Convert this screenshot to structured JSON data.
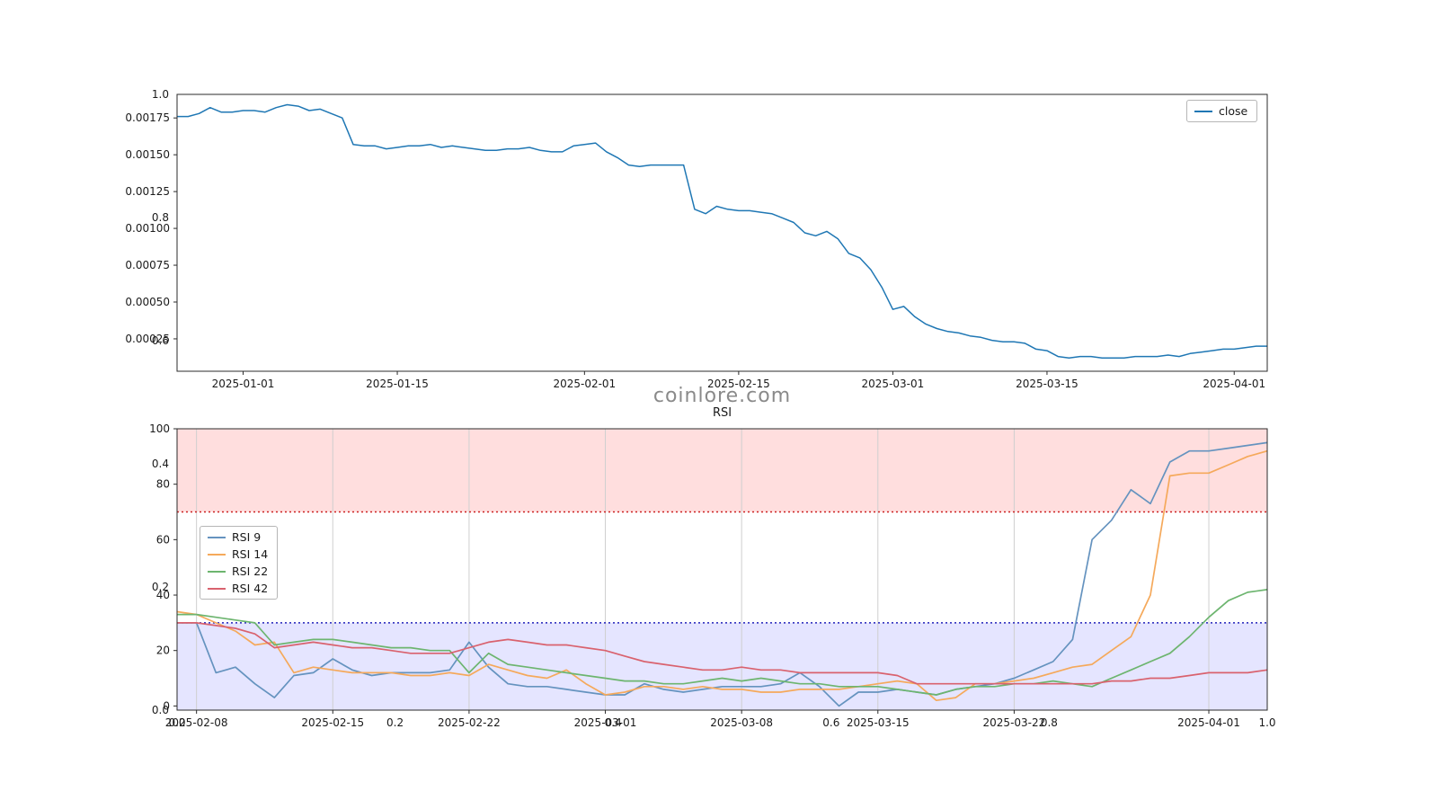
{
  "watermark": "coinlore.com",
  "ghost_axis": {
    "ytick_labels": [
      "1.0",
      "0.8",
      "0.6",
      "0.4",
      "0.2",
      "0.0"
    ],
    "xtick_labels": [
      "0.0",
      "0.2",
      "0.4",
      "0.6",
      "0.8",
      "1.0"
    ]
  },
  "chart_data": [
    {
      "type": "line",
      "title": "",
      "xlabel": "",
      "ylabel": "",
      "xlim": [
        "2024-12-26",
        "2025-04-04"
      ],
      "ylim": [
        3e-05,
        0.00191
      ],
      "grid": false,
      "legend_position": "upper right",
      "yticks": [
        0.00025,
        0.0005,
        0.00075,
        0.001,
        0.00125,
        0.0015,
        0.00175
      ],
      "ytick_labels": [
        "0.00025",
        "0.00050",
        "0.00075",
        "0.00100",
        "0.00125",
        "0.00150",
        "0.00175"
      ],
      "xticks": [
        "2025-01-01",
        "2025-01-15",
        "2025-02-01",
        "2025-02-15",
        "2025-03-01",
        "2025-03-15",
        "2025-04-01"
      ],
      "series": [
        {
          "name": "close",
          "color": "#1f77b4",
          "start_date": "2024-12-26",
          "values": [
            0.00176,
            0.00176,
            0.00178,
            0.00182,
            0.00179,
            0.00179,
            0.0018,
            0.0018,
            0.00179,
            0.00182,
            0.00184,
            0.00183,
            0.0018,
            0.00181,
            0.00178,
            0.00175,
            0.00157,
            0.00156,
            0.00156,
            0.00154,
            0.00155,
            0.00156,
            0.00156,
            0.00157,
            0.00155,
            0.00156,
            0.00155,
            0.00154,
            0.00153,
            0.00153,
            0.00154,
            0.00154,
            0.00155,
            0.00153,
            0.00152,
            0.00152,
            0.00156,
            0.00157,
            0.00158,
            0.00152,
            0.00148,
            0.00143,
            0.00142,
            0.00143,
            0.00143,
            0.00143,
            0.00143,
            0.00113,
            0.0011,
            0.00115,
            0.00113,
            0.00112,
            0.00112,
            0.00111,
            0.0011,
            0.00107,
            0.00104,
            0.00097,
            0.00095,
            0.00098,
            0.00093,
            0.00083,
            0.0008,
            0.00072,
            0.0006,
            0.00045,
            0.00047,
            0.0004,
            0.00035,
            0.00032,
            0.0003,
            0.00029,
            0.00027,
            0.00026,
            0.00024,
            0.00023,
            0.00023,
            0.00022,
            0.00018,
            0.00017,
            0.00013,
            0.00012,
            0.00013,
            0.00013,
            0.00012,
            0.00012,
            0.00012,
            0.00013,
            0.00013,
            0.00013,
            0.00014,
            0.00013,
            0.00015,
            0.00016,
            0.00017,
            0.00018,
            0.00018,
            0.00019,
            0.0002,
            0.0002
          ]
        }
      ]
    },
    {
      "type": "line",
      "title": "RSI",
      "xlabel": "",
      "ylabel": "",
      "xlim": [
        "2025-02-07",
        "2025-04-04"
      ],
      "ylim": [
        -1.5,
        100
      ],
      "grid": true,
      "legend_position": "center left",
      "yticks": [
        0,
        20,
        40,
        60,
        80,
        100
      ],
      "ytick_labels": [
        "0",
        "20",
        "40",
        "60",
        "80",
        "100"
      ],
      "xticks": [
        "2025-02-08",
        "2025-02-15",
        "2025-02-22",
        "2025-03-01",
        "2025-03-08",
        "2025-03-15",
        "2025-03-22",
        "2025-04-01"
      ],
      "bands": [
        {
          "from": 70,
          "to": 100,
          "color": "rgba(255,0,0,0.13)",
          "label": "overbought-zone"
        },
        {
          "from": -1.5,
          "to": 30,
          "color": "rgba(40,40,255,0.12)",
          "label": "oversold-zone"
        }
      ],
      "hlines": [
        {
          "y": 70,
          "color": "#cc2222",
          "dash": "2 3"
        },
        {
          "y": 30,
          "color": "#2222bb",
          "dash": "2 3"
        }
      ],
      "series": [
        {
          "name": "RSI 9",
          "color": "#6593bf",
          "start_date": "2025-02-07",
          "values": [
            30,
            30,
            12,
            14,
            8,
            3,
            11,
            12,
            17,
            13,
            11,
            12,
            12,
            12,
            13,
            23,
            14,
            8,
            7,
            7,
            6,
            5,
            4,
            4,
            8,
            6,
            5,
            6,
            7,
            7,
            7,
            8,
            12,
            7,
            0,
            5,
            5,
            6,
            5,
            4,
            6,
            7,
            8,
            10,
            13,
            16,
            24,
            60,
            67,
            78,
            73,
            88,
            92,
            92,
            93,
            94,
            95
          ]
        },
        {
          "name": "RSI 14",
          "color": "#f5a95b",
          "start_date": "2025-02-07",
          "values": [
            34,
            33,
            30,
            27,
            22,
            23,
            12,
            14,
            13,
            12,
            12,
            12,
            11,
            11,
            12,
            11,
            15,
            13,
            11,
            10,
            13,
            8,
            4,
            5,
            7,
            7,
            6,
            7,
            6,
            6,
            5,
            5,
            6,
            6,
            6,
            7,
            8,
            9,
            8,
            2,
            3,
            8,
            8,
            9,
            10,
            12,
            14,
            15,
            20,
            25,
            40,
            83,
            84,
            84,
            87,
            90,
            92
          ]
        },
        {
          "name": "RSI 22",
          "color": "#6db56f",
          "start_date": "2025-02-07",
          "values": [
            33,
            33,
            32,
            31,
            30,
            22,
            23,
            24,
            24,
            23,
            22,
            21,
            21,
            20,
            20,
            12,
            19,
            15,
            14,
            13,
            12,
            11,
            10,
            9,
            9,
            8,
            8,
            9,
            10,
            9,
            10,
            9,
            8,
            8,
            7,
            7,
            7,
            6,
            5,
            4,
            6,
            7,
            7,
            8,
            8,
            9,
            8,
            7,
            10,
            13,
            16,
            19,
            25,
            32,
            38,
            41,
            42
          ]
        },
        {
          "name": "RSI 42",
          "color": "#d9626e",
          "start_date": "2025-02-07",
          "values": [
            30,
            30,
            29,
            28,
            26,
            21,
            22,
            23,
            22,
            21,
            21,
            20,
            19,
            19,
            19,
            21,
            23,
            24,
            23,
            22,
            22,
            21,
            20,
            18,
            16,
            15,
            14,
            13,
            13,
            14,
            13,
            13,
            12,
            12,
            12,
            12,
            12,
            11,
            8,
            8,
            8,
            8,
            8,
            8,
            8,
            8,
            8,
            8,
            9,
            9,
            10,
            10,
            11,
            12,
            12,
            12,
            13
          ]
        }
      ]
    }
  ]
}
